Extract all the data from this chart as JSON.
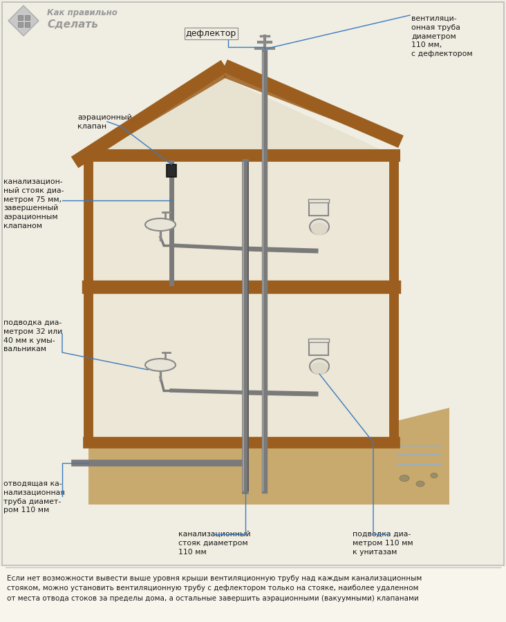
{
  "bg_color": "#f0ede2",
  "wall_color": "#ece7d6",
  "wood_color": "#9b5e1e",
  "soil_color": "#c8a96e",
  "pipe_gray": "#7a7a7a",
  "pipe_light": "#aaaaaa",
  "line_color": "#3a7abf",
  "text_color": "#1a1a1a",
  "footer_bg": "#f5f2e8",
  "label_deflector": "дефлектор",
  "label_aeration": "аэрационный\nклапан",
  "label_stack75": "канализацион-\nный стояк диа-\nметром 75 мм,\nзавершенный\nаэрационным\nклапаном",
  "label_podvod32": "подводка диа-\nметром 32 или\n40 мм к умы-\nвальникам",
  "label_otvodyas": "отводящая ка-\nнализационная\nтруба диамет-\nром 110 мм",
  "label_stack110": "канализационный\nстояк диаметром\n110 мм",
  "label_podvod110": "подводка диа-\nметром 110 мм\nк унитазам",
  "label_vent110": "вентиляци-\nонная труба\nдиаметром\n110 мм,\nс дефлектором",
  "footer_text": "Если нет возможности вывести выше уровня крыши вентиляционную трубу над каждым канализационным\nстояком, можно установить вентиляционную трубу с дефлектором только на стояке, наиболее удаленном\nот места отвода стоков за пределы дома, а остальные завершить аэрационными (вакуумными) клапанами"
}
